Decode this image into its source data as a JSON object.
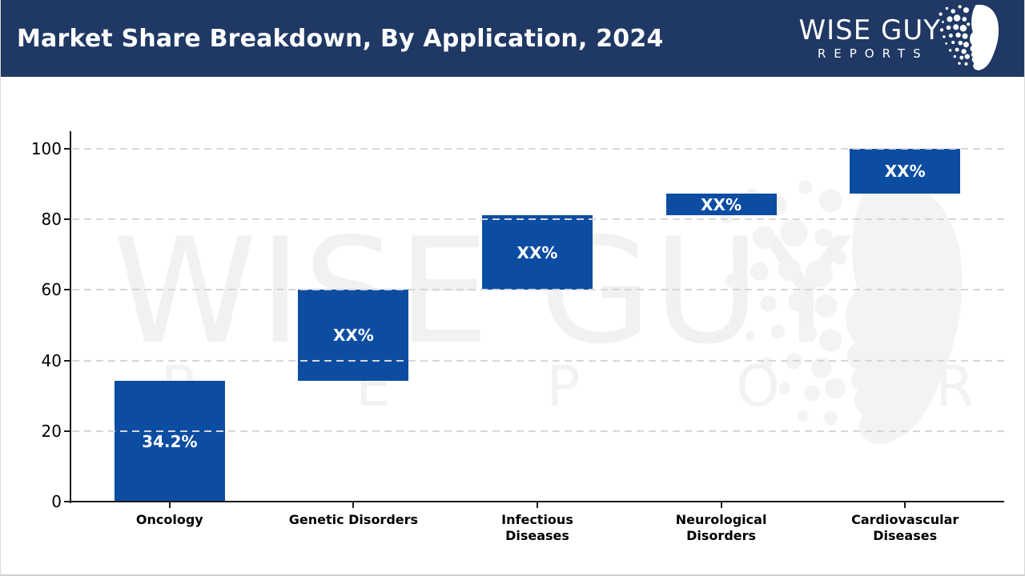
{
  "header": {
    "title": "Market Share Breakdown, By Application, 2024",
    "logo": {
      "line1": "WISE GUY",
      "line2": "REPORTS"
    }
  },
  "watermark": {
    "line1": "WISE GUY",
    "line2": "R E P O R T S"
  },
  "chart_data": {
    "type": "bar",
    "subtype": "waterfall",
    "title": "Market Share Breakdown, By Application, 2024",
    "categories": [
      "Oncology",
      "Genetic Disorders",
      "Infectious\nDiseases",
      "Neurological\nDisorders",
      "Cardiovascular\nDiseases"
    ],
    "segments": [
      {
        "category": "Oncology",
        "start": 0,
        "end": 34.2,
        "value": 34.2,
        "label": "34.2%"
      },
      {
        "category": "Genetic Disorders",
        "start": 34.2,
        "end": 60,
        "value": 25.8,
        "label": "XX%"
      },
      {
        "category": "Infectious Diseases",
        "start": 60,
        "end": 81.2,
        "value": 21.2,
        "label": "XX%"
      },
      {
        "category": "Neurological Disorders",
        "start": 81.2,
        "end": 87.2,
        "value": 6.0,
        "label": "XX%"
      },
      {
        "category": "Cardiovascular Diseases",
        "start": 87.2,
        "end": 100,
        "value": 12.8,
        "label": "XX%"
      }
    ],
    "xlabel": "",
    "ylabel": "",
    "ylim": [
      0,
      100
    ],
    "yticks": [
      0,
      20,
      40,
      60,
      80,
      100
    ],
    "grid": "horizontal-dashed",
    "legend": "none",
    "bar_color": "#0c4da2",
    "bar_label_color": "#ffffff",
    "header_bg_color": "#1f3864",
    "grid_color": "#d7d7d7",
    "axis_color": "#1a1a1a"
  }
}
